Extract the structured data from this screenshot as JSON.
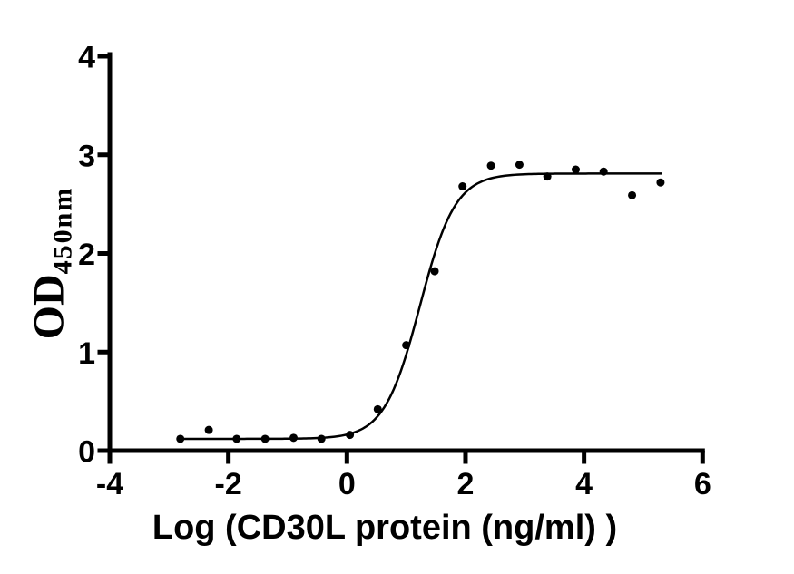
{
  "figure": {
    "background": "#ffffff",
    "foreground": "#000000",
    "y_axis_label": {
      "main": "OD",
      "subscript": "450nm"
    },
    "x_axis_label": "Log (CD30L protein (ng/ml) )"
  },
  "chart_data": {
    "type": "scatter",
    "title": "",
    "xlabel": "Log (CD30L protein (ng/ml) )",
    "ylabel": "OD450nm",
    "xlim": [
      -4,
      6
    ],
    "ylim": [
      0,
      4
    ],
    "x_ticks": [
      -4,
      -2,
      0,
      2,
      4,
      6
    ],
    "y_ticks": [
      0,
      1,
      2,
      3,
      4
    ],
    "grid": false,
    "legend": false,
    "marker_color": "#000000",
    "line_color": "#000000",
    "points": [
      {
        "x": -2.81,
        "y": 0.12
      },
      {
        "x": -2.33,
        "y": 0.21
      },
      {
        "x": -1.86,
        "y": 0.12
      },
      {
        "x": -1.38,
        "y": 0.12
      },
      {
        "x": -0.9,
        "y": 0.13
      },
      {
        "x": -0.43,
        "y": 0.12
      },
      {
        "x": 0.05,
        "y": 0.16
      },
      {
        "x": 0.52,
        "y": 0.42
      },
      {
        "x": 1.0,
        "y": 1.07
      },
      {
        "x": 1.48,
        "y": 1.82
      },
      {
        "x": 1.95,
        "y": 2.68
      },
      {
        "x": 2.43,
        "y": 2.89
      },
      {
        "x": 2.91,
        "y": 2.9
      },
      {
        "x": 3.38,
        "y": 2.78
      },
      {
        "x": 3.86,
        "y": 2.85
      },
      {
        "x": 4.33,
        "y": 2.83
      },
      {
        "x": 4.81,
        "y": 2.59
      },
      {
        "x": 5.29,
        "y": 2.72
      }
    ],
    "fit_curve": {
      "model": "4PL",
      "bottom": 0.12,
      "top": 2.81,
      "logEC50": 1.23,
      "hillslope": 1.45,
      "x_start": -2.81,
      "x_end": 5.31
    }
  }
}
